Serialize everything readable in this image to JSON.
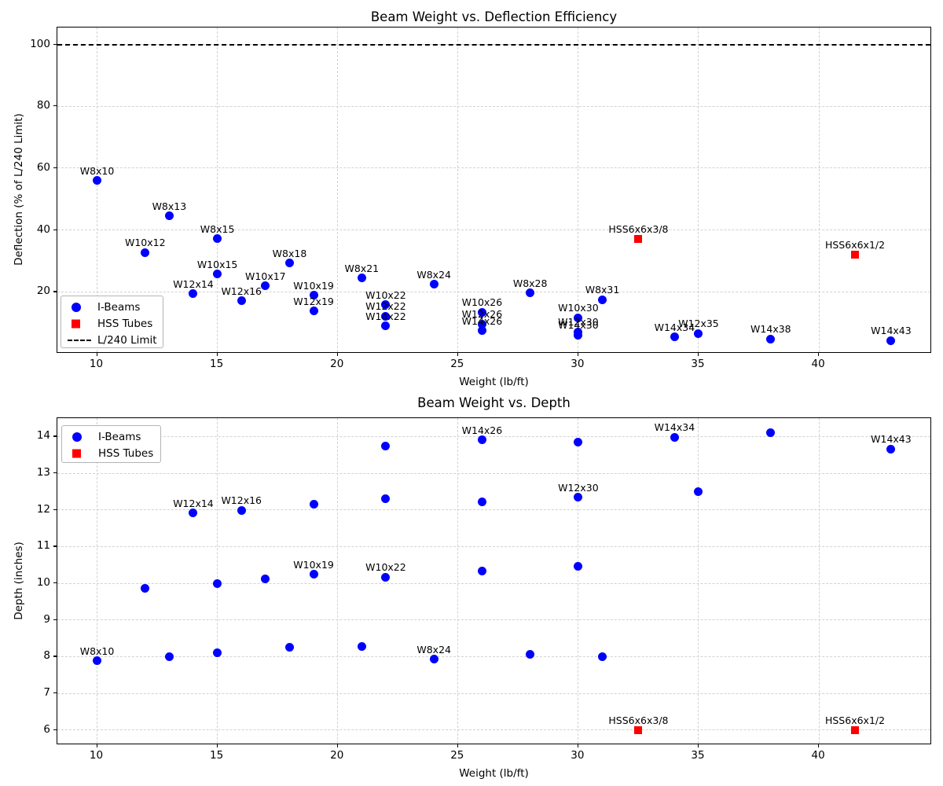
{
  "colors": {
    "ibeam": "#0000ff",
    "hss": "#ff0000",
    "limit_line": "#000000",
    "grid": "#d2d2d2",
    "background": "#ffffff"
  },
  "chart_data": [
    {
      "type": "scatter",
      "title": "Beam Weight vs. Deflection Efficiency",
      "xlabel": "Weight (lb/ft)",
      "ylabel": "Deflection (% of L/240 Limit)",
      "xlim": [
        8.35,
        44.7
      ],
      "ylim": [
        0,
        105.5
      ],
      "xticks": [
        10,
        15,
        20,
        25,
        30,
        35,
        40
      ],
      "yticks": [
        20,
        40,
        60,
        80,
        100
      ],
      "grid": true,
      "legend_position": "lower-left",
      "reference_line": {
        "y": 100,
        "label": "L/240 Limit",
        "style": "dashed",
        "color": "#000000"
      },
      "series": [
        {
          "name": "I-Beams",
          "marker": "circle",
          "color": "#0000ff",
          "points": [
            {
              "label": "W8x10",
              "x": 10,
              "y": 56.0,
              "show_label": true
            },
            {
              "label": "W10x12",
              "x": 12,
              "y": 32.7,
              "show_label": true
            },
            {
              "label": "W8x13",
              "x": 13,
              "y": 44.6,
              "show_label": true
            },
            {
              "label": "W12x14",
              "x": 14,
              "y": 19.4,
              "show_label": true
            },
            {
              "label": "W8x15",
              "x": 15,
              "y": 37.2,
              "show_label": true
            },
            {
              "label": "W10x15",
              "x": 15,
              "y": 25.8,
              "show_label": true
            },
            {
              "label": "W12x16",
              "x": 16,
              "y": 17.1,
              "show_label": true
            },
            {
              "label": "W10x17",
              "x": 17,
              "y": 21.9,
              "show_label": true
            },
            {
              "label": "W8x18",
              "x": 18,
              "y": 29.3,
              "show_label": true
            },
            {
              "label": "W10x19",
              "x": 19,
              "y": 18.9,
              "show_label": true
            },
            {
              "label": "W12x19",
              "x": 19,
              "y": 13.8,
              "show_label": true
            },
            {
              "label": "W8x21",
              "x": 21,
              "y": 24.5,
              "show_label": true
            },
            {
              "label": "W10x22",
              "x": 22,
              "y": 15.8,
              "show_label": true
            },
            {
              "label": "W12x22",
              "x": 22,
              "y": 12.2,
              "show_label": true
            },
            {
              "label": "W14x22",
              "x": 22,
              "y": 9.0,
              "show_label": true
            },
            {
              "label": "W8x24",
              "x": 24,
              "y": 22.4,
              "show_label": true
            },
            {
              "label": "W10x26",
              "x": 26,
              "y": 13.4,
              "show_label": true
            },
            {
              "label": "W12x26",
              "x": 26,
              "y": 9.6,
              "show_label": true
            },
            {
              "label": "W14x26",
              "x": 26,
              "y": 7.4,
              "show_label": true
            },
            {
              "label": "W8x28",
              "x": 28,
              "y": 19.6,
              "show_label": true
            },
            {
              "label": "W10x30",
              "x": 30,
              "y": 11.6,
              "show_label": true
            },
            {
              "label": "W12x30",
              "x": 30,
              "y": 7.1,
              "show_label": true
            },
            {
              "label": "W14x30",
              "x": 30,
              "y": 6.0,
              "show_label": true
            },
            {
              "label": "W8x31",
              "x": 31,
              "y": 17.5,
              "show_label": true
            },
            {
              "label": "W14x34",
              "x": 34,
              "y": 5.4,
              "show_label": true
            },
            {
              "label": "W12x35",
              "x": 35,
              "y": 6.6,
              "show_label": true
            },
            {
              "label": "W14x38",
              "x": 38,
              "y": 4.8,
              "show_label": true
            },
            {
              "label": "W14x43",
              "x": 43,
              "y": 4.3,
              "show_label": true
            }
          ]
        },
        {
          "name": "HSS Tubes",
          "marker": "square",
          "color": "#ff0000",
          "points": [
            {
              "label": "HSS6x6x3/8",
              "x": 32.5,
              "y": 37.0,
              "show_label": true
            },
            {
              "label": "HSS6x6x1/2",
              "x": 41.5,
              "y": 32.1,
              "show_label": true
            }
          ]
        }
      ],
      "legend": {
        "items": [
          {
            "label": "I-Beams",
            "marker": "circle",
            "color": "#0000ff"
          },
          {
            "label": "HSS Tubes",
            "marker": "square",
            "color": "#ff0000"
          },
          {
            "label": "L/240 Limit",
            "marker": "dashed-line",
            "color": "#000000"
          }
        ]
      }
    },
    {
      "type": "scatter",
      "title": "Beam Weight vs. Depth",
      "xlabel": "Weight (lb/ft)",
      "ylabel": "Depth (inches)",
      "xlim": [
        8.35,
        44.7
      ],
      "ylim": [
        5.59,
        14.5
      ],
      "xticks": [
        10,
        15,
        20,
        25,
        30,
        35,
        40
      ],
      "yticks": [
        6,
        7,
        8,
        9,
        10,
        11,
        12,
        13,
        14
      ],
      "grid": true,
      "legend_position": "upper-left",
      "reference_line": null,
      "series": [
        {
          "name": "I-Beams",
          "marker": "circle",
          "color": "#0000ff",
          "points": [
            {
              "label": "W8x10",
              "x": 10,
              "y": 7.89,
              "show_label": true
            },
            {
              "label": "W10x12",
              "x": 12,
              "y": 9.87,
              "show_label": false
            },
            {
              "label": "W8x13",
              "x": 13,
              "y": 7.99,
              "show_label": false
            },
            {
              "label": "W12x14",
              "x": 14,
              "y": 11.91,
              "show_label": true
            },
            {
              "label": "W8x15",
              "x": 15,
              "y": 8.11,
              "show_label": false
            },
            {
              "label": "W10x15",
              "x": 15,
              "y": 9.99,
              "show_label": false
            },
            {
              "label": "W12x16",
              "x": 16,
              "y": 11.99,
              "show_label": true
            },
            {
              "label": "W10x17",
              "x": 17,
              "y": 10.11,
              "show_label": false
            },
            {
              "label": "W8x18",
              "x": 18,
              "y": 8.26,
              "show_label": false
            },
            {
              "label": "W10x19",
              "x": 19,
              "y": 10.24,
              "show_label": true
            },
            {
              "label": "W12x19",
              "x": 19,
              "y": 12.16,
              "show_label": false
            },
            {
              "label": "W8x21",
              "x": 21,
              "y": 8.28,
              "show_label": false
            },
            {
              "label": "W10x22",
              "x": 22,
              "y": 10.17,
              "show_label": true
            },
            {
              "label": "W12x22",
              "x": 22,
              "y": 12.31,
              "show_label": false
            },
            {
              "label": "W14x22",
              "x": 22,
              "y": 13.74,
              "show_label": false
            },
            {
              "label": "W8x24",
              "x": 24,
              "y": 7.93,
              "show_label": true
            },
            {
              "label": "W10x26",
              "x": 26,
              "y": 10.33,
              "show_label": false
            },
            {
              "label": "W12x26",
              "x": 26,
              "y": 12.22,
              "show_label": false
            },
            {
              "label": "W14x26",
              "x": 26,
              "y": 13.91,
              "show_label": true
            },
            {
              "label": "W8x28",
              "x": 28,
              "y": 8.06,
              "show_label": false
            },
            {
              "label": "W10x30",
              "x": 30,
              "y": 10.47,
              "show_label": false
            },
            {
              "label": "W12x30",
              "x": 30,
              "y": 12.34,
              "show_label": true
            },
            {
              "label": "W14x30",
              "x": 30,
              "y": 13.84,
              "show_label": false
            },
            {
              "label": "W8x31",
              "x": 31,
              "y": 8.0,
              "show_label": false
            },
            {
              "label": "W14x34",
              "x": 34,
              "y": 13.98,
              "show_label": true
            },
            {
              "label": "W12x35",
              "x": 35,
              "y": 12.5,
              "show_label": false
            },
            {
              "label": "W14x38",
              "x": 38,
              "y": 14.1,
              "show_label": false
            },
            {
              "label": "W14x43",
              "x": 43,
              "y": 13.66,
              "show_label": true
            }
          ]
        },
        {
          "name": "HSS Tubes",
          "marker": "square",
          "color": "#ff0000",
          "points": [
            {
              "label": "HSS6x6x3/8",
              "x": 32.5,
              "y": 6.0,
              "show_label": true
            },
            {
              "label": "HSS6x6x1/2",
              "x": 41.5,
              "y": 6.0,
              "show_label": true
            }
          ]
        }
      ],
      "legend": {
        "items": [
          {
            "label": "I-Beams",
            "marker": "circle",
            "color": "#0000ff"
          },
          {
            "label": "HSS Tubes",
            "marker": "square",
            "color": "#ff0000"
          }
        ]
      }
    }
  ]
}
